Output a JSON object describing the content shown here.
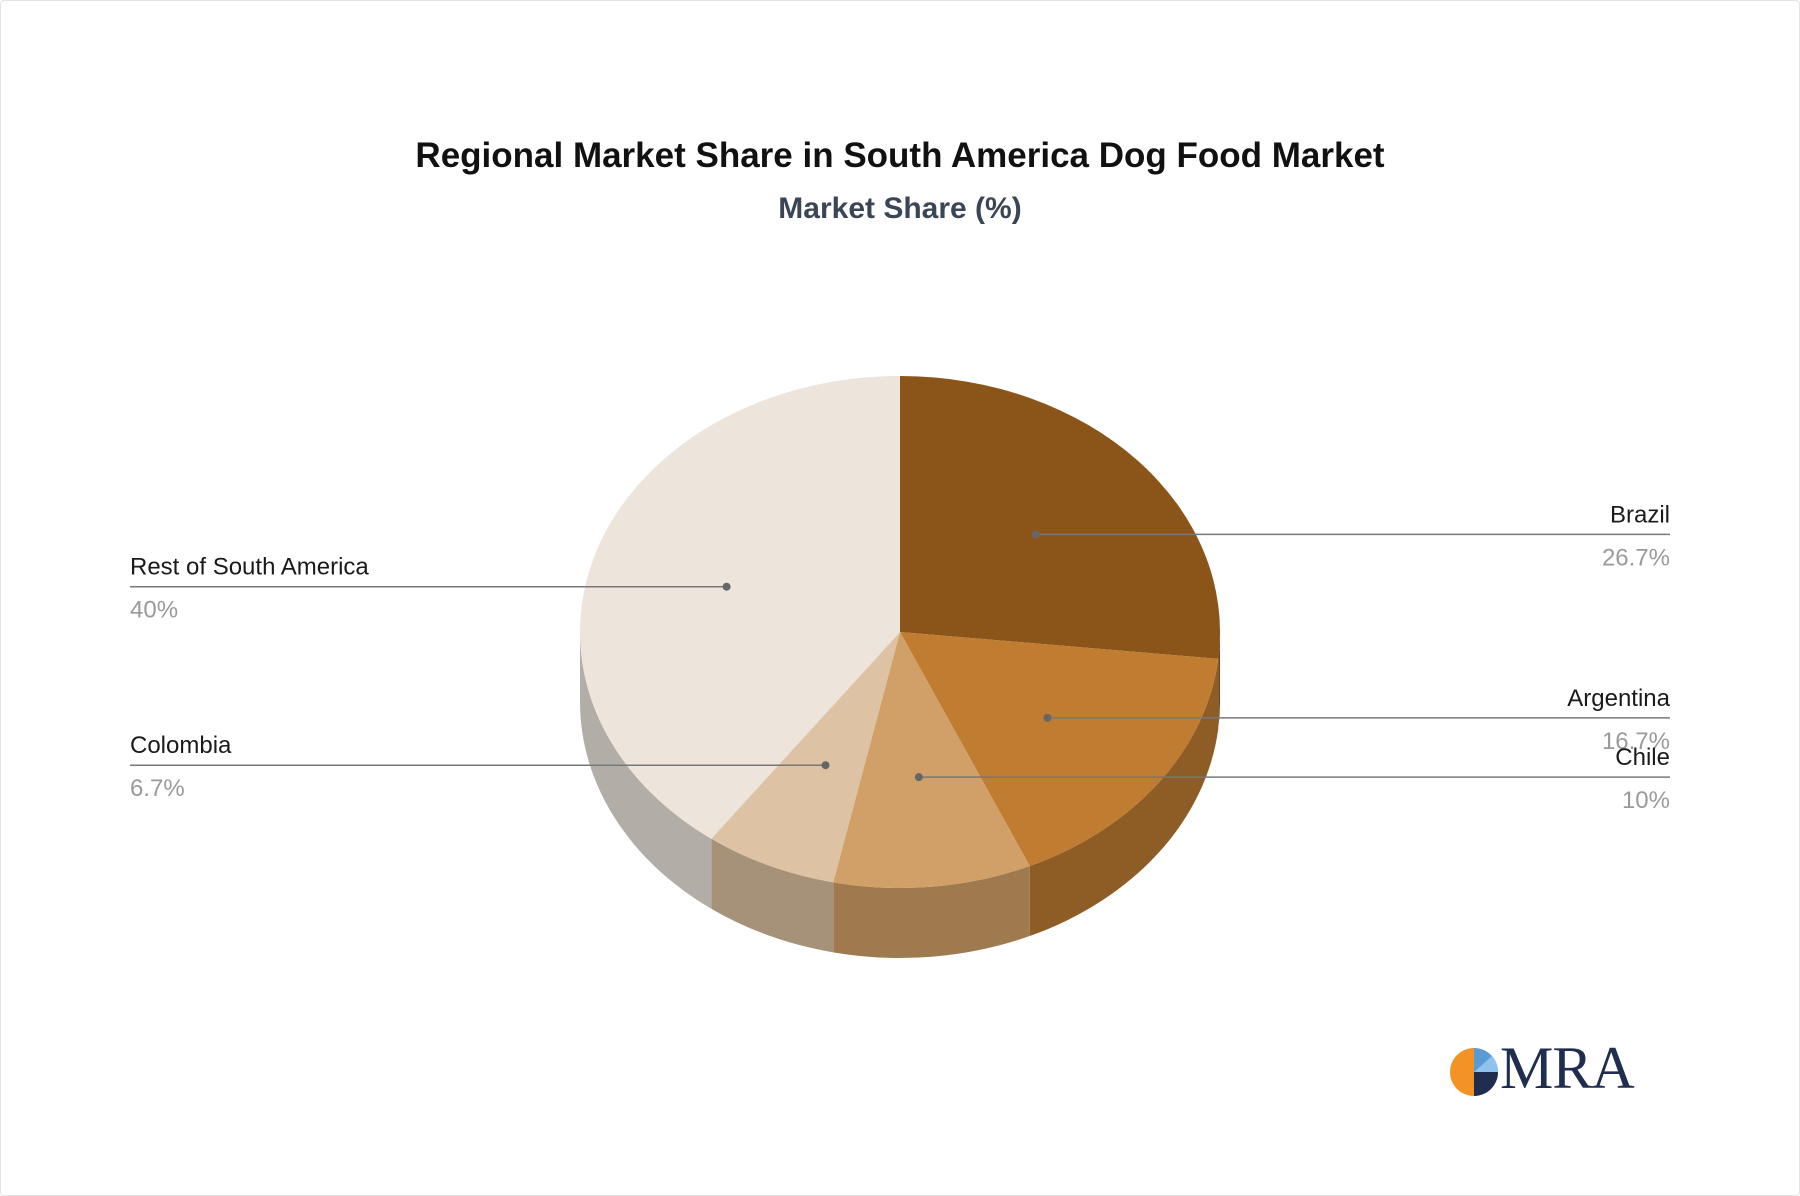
{
  "title": "Regional Market Share in South America Dog Food Market",
  "subtitle": "Market Share (%)",
  "chart_data": {
    "type": "pie",
    "style": "3d",
    "slices": [
      {
        "label": "Brazil",
        "value": 26.7,
        "value_label": "26.7%",
        "color": "#8b5519",
        "side_color": "#6e4312",
        "label_side": "right"
      },
      {
        "label": "Argentina",
        "value": 16.7,
        "value_label": "16.7%",
        "color": "#c07c30",
        "side_color": "#8e5c25",
        "label_side": "right"
      },
      {
        "label": "Chile",
        "value": 10,
        "value_label": "10%",
        "color": "#d1a068",
        "side_color": "#9f7a4e",
        "label_side": "right"
      },
      {
        "label": "Colombia",
        "value": 6.7,
        "value_label": "6.7%",
        "color": "#ddc2a3",
        "side_color": "#a69179",
        "label_side": "left"
      },
      {
        "label": "Rest of South America",
        "value": 40,
        "value_label": "40%",
        "color": "#ede4db",
        "side_color": "#b3ada7",
        "label_side": "left"
      }
    ]
  },
  "logo": {
    "text": "MRA",
    "colors": [
      "#f39325",
      "#1f2d4e",
      "#5b9bd5"
    ]
  }
}
